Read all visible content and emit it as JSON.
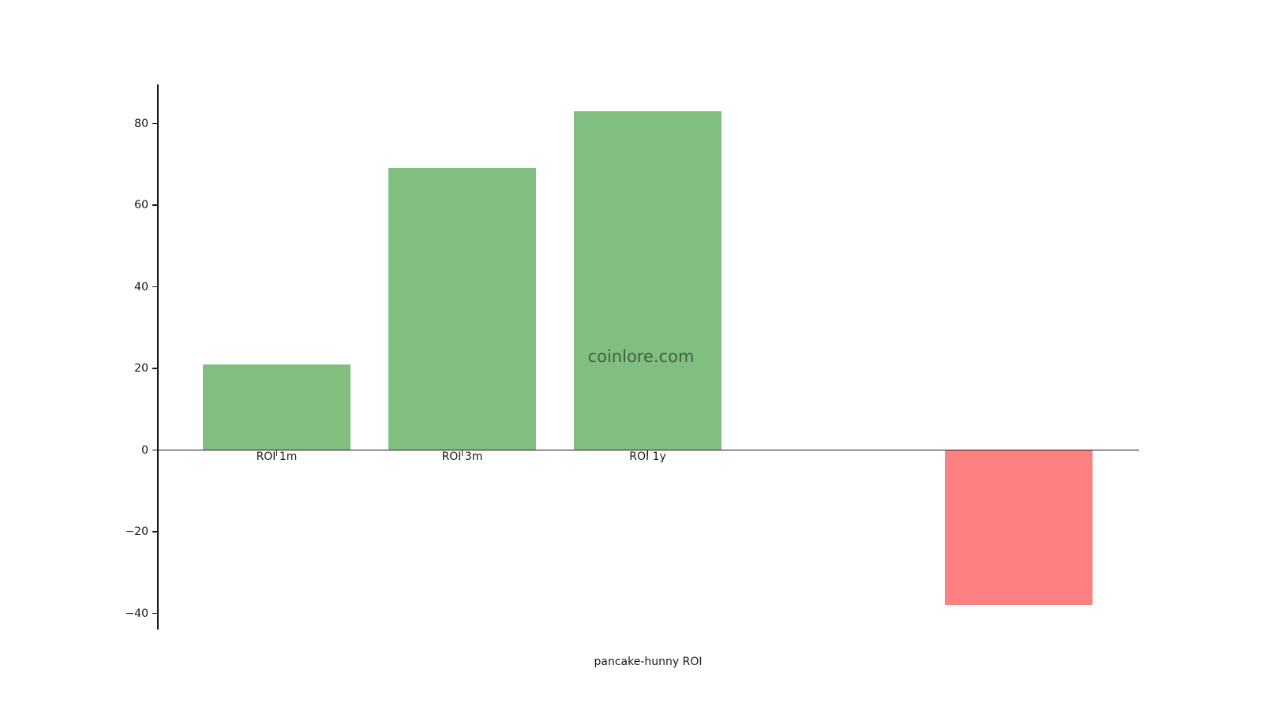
{
  "chart_data": {
    "type": "bar",
    "title": "pancake-hunny ROI",
    "watermark": "coinlore.com",
    "categories": [
      "ROI 1m",
      "ROI 3m",
      "ROI 1y",
      "",
      ""
    ],
    "bars": [
      {
        "label": "ROI 1m",
        "value": 21,
        "slot": 0,
        "color": "positive"
      },
      {
        "label": "ROI 3m",
        "value": 69,
        "slot": 1,
        "color": "positive"
      },
      {
        "label": "ROI 1y",
        "value": 83,
        "slot": 2,
        "color": "positive"
      },
      {
        "label": "",
        "value": -38,
        "slot": 4,
        "color": "negative"
      }
    ],
    "num_slots": 5,
    "y_ticks": [
      {
        "value": 80,
        "label": "80"
      },
      {
        "value": 60,
        "label": "60"
      },
      {
        "value": 40,
        "label": "40"
      },
      {
        "value": 20,
        "label": "20"
      },
      {
        "value": 0,
        "label": "0"
      },
      {
        "value": -20,
        "label": "−20"
      },
      {
        "value": -40,
        "label": "−40"
      }
    ],
    "ylim": [
      -44,
      89
    ],
    "grid": false,
    "legend": false,
    "colors": {
      "positive": "#80bf80",
      "negative": "#ff8080",
      "axis": "#1a1a1a"
    }
  }
}
